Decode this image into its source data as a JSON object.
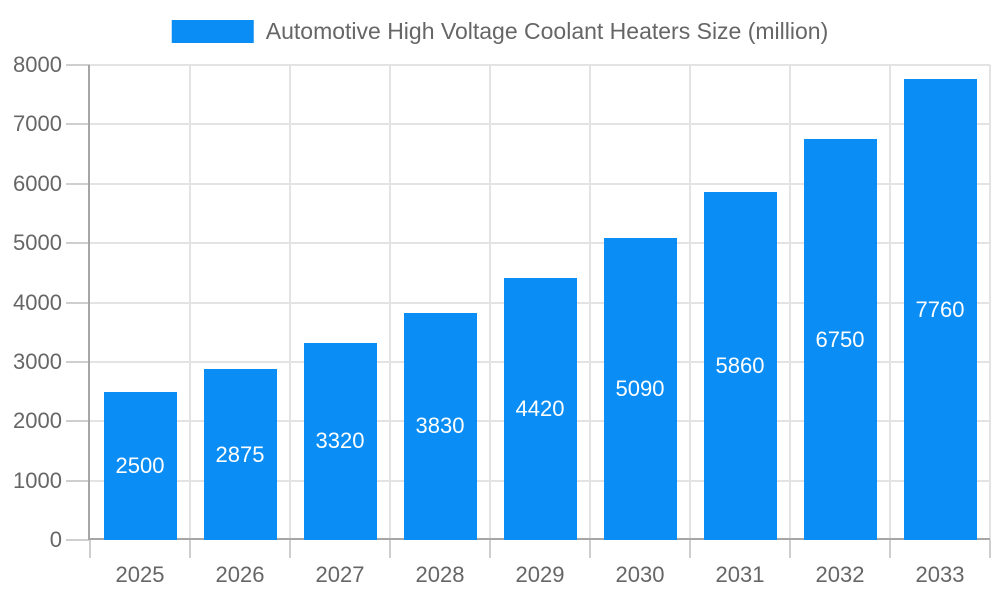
{
  "legend": {
    "label": "Automotive High Voltage Coolant Heaters Size (million)"
  },
  "chart_data": {
    "type": "bar",
    "title": "Automotive High Voltage Coolant Heaters Size (million)",
    "categories": [
      "2025",
      "2026",
      "2027",
      "2028",
      "2029",
      "2030",
      "2031",
      "2032",
      "2033"
    ],
    "values": [
      2500,
      2875,
      3320,
      3830,
      4420,
      5090,
      5860,
      6750,
      7760
    ],
    "bar_labels": [
      "2500",
      "2875",
      "3320",
      "3830",
      "4420",
      "5090",
      "5860",
      "6750",
      "7760"
    ],
    "xlabel": "",
    "ylabel": "",
    "ylim": [
      0,
      8000
    ],
    "yticks": [
      0,
      1000,
      2000,
      3000,
      4000,
      5000,
      6000,
      7000,
      8000
    ],
    "grid": true,
    "legend_position": "top-center",
    "bar_color": "#0a8df4",
    "value_label_color": "#ffffff",
    "colors": {
      "axis_line": "#a6a6a6",
      "grid_line": "#e3e3e3",
      "tick_mark": "#cfcfcf",
      "axis_label": "#666666"
    }
  }
}
